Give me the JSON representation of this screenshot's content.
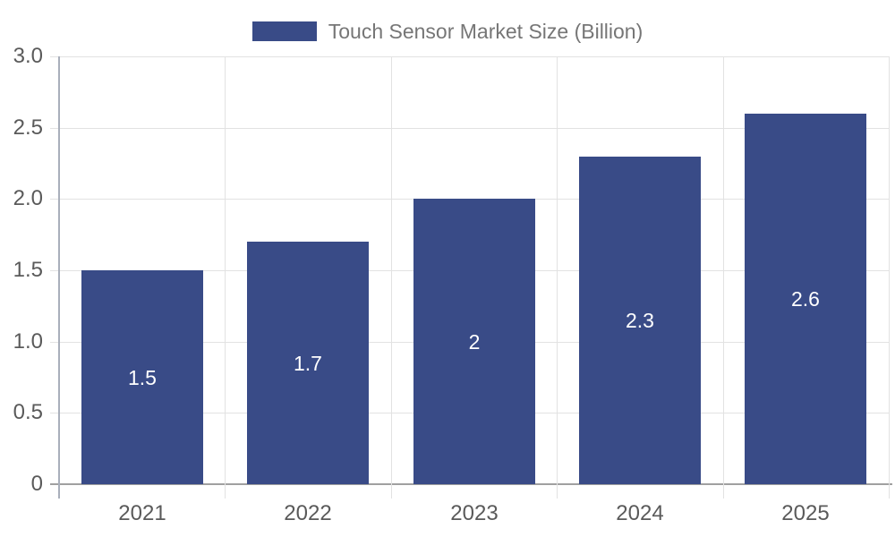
{
  "legend": {
    "label": "Touch Sensor Market Size (Billion)"
  },
  "colors": {
    "bar": "#394b87",
    "bar_label": "#ffffff",
    "grid": "#e2e2e2",
    "axis_line": "#a9afbb",
    "baseline": "#a0a0a0",
    "tick_text": "#5a5a5a",
    "legend_text": "#767676",
    "background": "#ffffff"
  },
  "chart_data": {
    "type": "bar",
    "title": "Touch Sensor Market Size (Billion)",
    "categories": [
      "2021",
      "2022",
      "2023",
      "2024",
      "2025"
    ],
    "values": [
      1.5,
      1.7,
      2,
      2.3,
      2.6
    ],
    "bar_labels": [
      "1.5",
      "1.7",
      "2",
      "2.3",
      "2.6"
    ],
    "xlabel": "",
    "ylabel": "",
    "ylim": [
      0,
      3
    ],
    "yticks": [
      0,
      0.5,
      1,
      1.5,
      2,
      2.5,
      3
    ],
    "ytick_labels": [
      "0",
      "0.5",
      "1.0",
      "1.5",
      "2.0",
      "2.5",
      "3.0"
    ],
    "grid": true,
    "legend_position": "top-center"
  }
}
